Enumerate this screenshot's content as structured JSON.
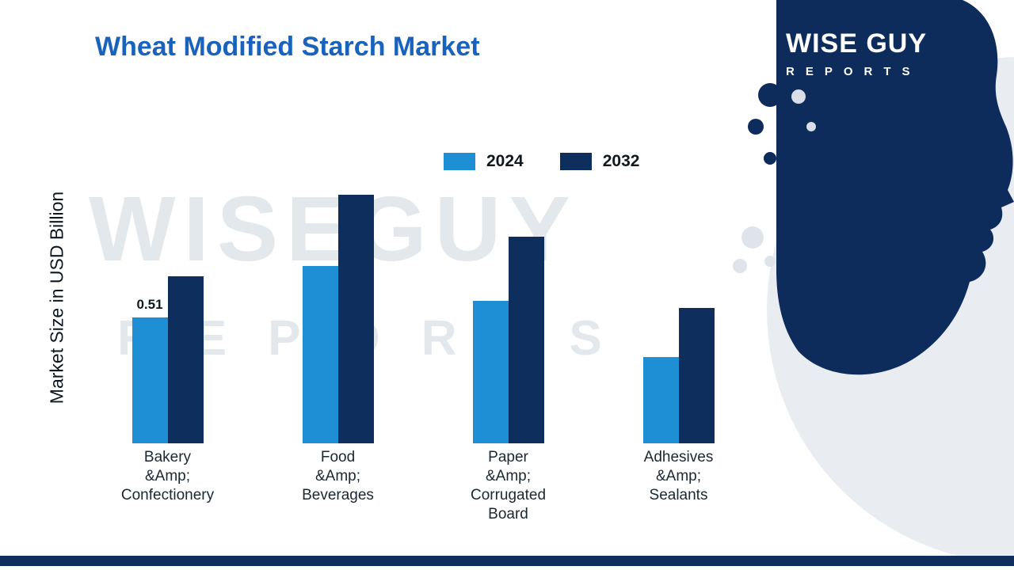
{
  "page": {
    "title": "Wheat Modified Starch Market"
  },
  "logo": {
    "word": "WISE GUY",
    "sub": "REPORTS"
  },
  "watermark": {
    "line1": "WISEGUY",
    "line2": "REPORTS"
  },
  "colors": {
    "accent_blue": "#1e8fd5",
    "navy": "#0e2f5e",
    "title_blue": "#1a63bc"
  },
  "chart_data": {
    "type": "bar",
    "title": "Wheat Modified Starch Market",
    "xlabel": "",
    "ylabel": "Market Size in USD Billion",
    "categories": [
      "Bakery &Amp; Confectionery",
      "Food &Amp; Beverages",
      "Paper &Amp; Corrugated Board",
      "Adhesives &Amp; Sealants"
    ],
    "categories_lines": [
      [
        "Bakery",
        "&Amp;",
        "Confectionery"
      ],
      [
        "Food",
        "&Amp;",
        "Beverages"
      ],
      [
        "Paper",
        "&Amp;",
        "Corrugated",
        "Board"
      ],
      [
        "Adhesives",
        "&Amp;",
        "Sealants"
      ]
    ],
    "series": [
      {
        "name": "2024",
        "color": "#1e8fd5",
        "values": [
          0.51,
          0.72,
          0.58,
          0.35
        ]
      },
      {
        "name": "2032",
        "color": "#0e2f5e",
        "values": [
          0.68,
          1.01,
          0.84,
          0.55
        ]
      }
    ],
    "data_labels": [
      {
        "series": "2024",
        "category_index": 0,
        "label": "0.51"
      }
    ],
    "ylim": [
      0,
      1.1
    ],
    "grid": false,
    "legend_position": "top-center"
  }
}
